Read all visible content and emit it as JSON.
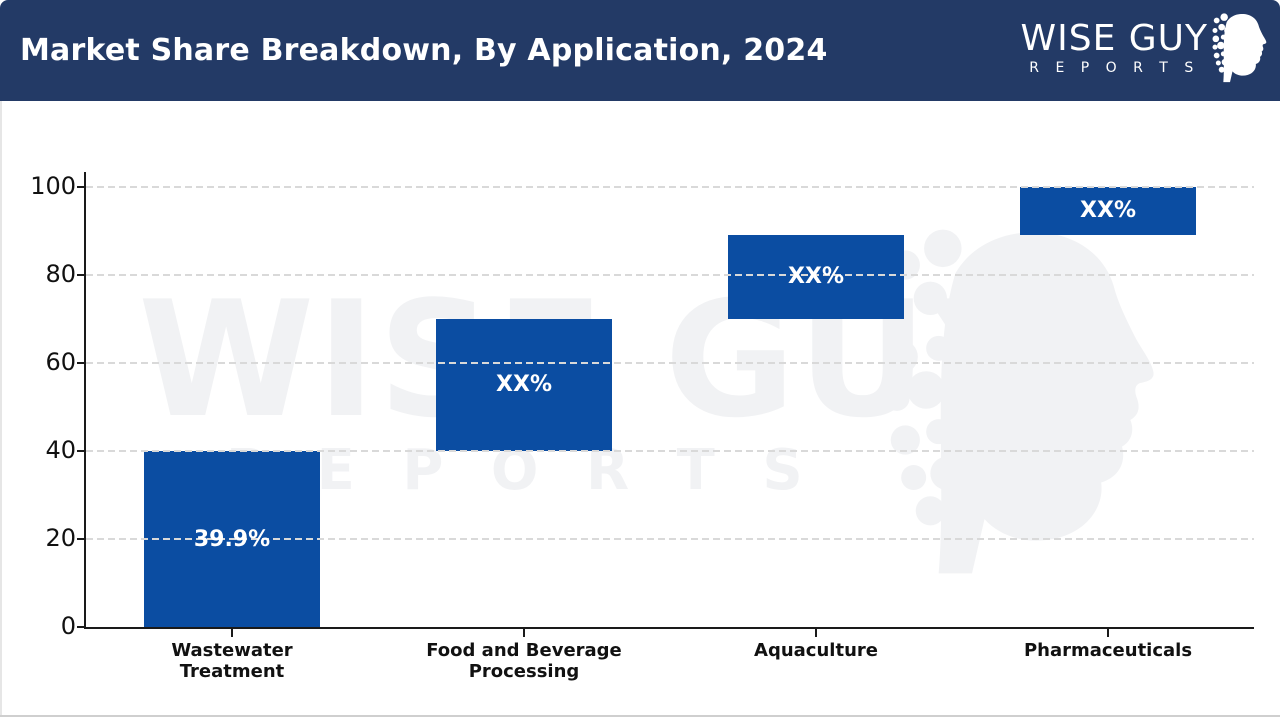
{
  "header": {
    "title": "Market Share Breakdown, By Application, 2024",
    "brand_line1": "WISE GUY",
    "brand_line2": "R E P O R T S"
  },
  "watermark": {
    "line1": "WISE GUY.",
    "line2": "R E P O R T S"
  },
  "colors": {
    "header_bg": "#233A66",
    "bar": "#0B4DA2",
    "grid": "#D9D9D9",
    "axis": "#1A1A1A",
    "bar_label_text": "#FFFFFF",
    "watermark": "#F1F2F4"
  },
  "chart_data": {
    "type": "bar",
    "variant": "floating stacked percentage segments (waterfall-style market share breakdown)",
    "title": "Market Share Breakdown, By Application, 2024",
    "categories": [
      "Wastewater\nTreatment",
      "Food and Beverage\nProcessing",
      "Aquaculture",
      "Pharmaceuticals"
    ],
    "segments": [
      {
        "category": "Wastewater Treatment",
        "label": "39.9%",
        "start": 0,
        "end": 39.9
      },
      {
        "category": "Food and Beverage Processing",
        "label": "XX%",
        "start": 39.9,
        "end": 70
      },
      {
        "category": "Aquaculture",
        "label": "XX%",
        "start": 70,
        "end": 89
      },
      {
        "category": "Pharmaceuticals",
        "label": "XX%",
        "start": 89,
        "end": 100
      }
    ],
    "y_ticks": [
      0,
      20,
      40,
      60,
      80,
      100
    ],
    "ylim": [
      0,
      103.3
    ],
    "xlabel": "",
    "ylabel": "",
    "grid": "horizontal-dashed, drawn above bars",
    "legend": "none",
    "bar_color": "#0B4DA2"
  }
}
